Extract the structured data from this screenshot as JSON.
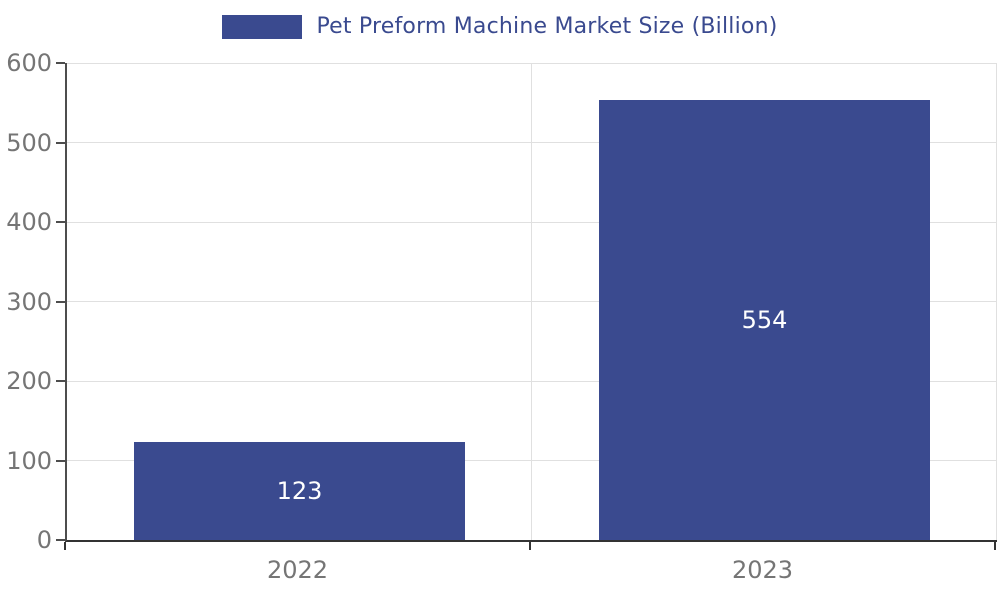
{
  "chart_data": {
    "type": "bar",
    "title": "Pet Preform Machine Market Size (Billion)",
    "categories": [
      "2022",
      "2023"
    ],
    "values": [
      123,
      554
    ],
    "xlabel": "",
    "ylabel": "",
    "ylim": [
      0,
      600
    ],
    "yticks": [
      0,
      100,
      200,
      300,
      400,
      500,
      600
    ],
    "grid": true,
    "legend_position": "top",
    "colors": {
      "bar": "#3a4a8f",
      "title_text": "#3a4a8f",
      "tick_label": "#757575",
      "value_label": "#ffffff",
      "gridline": "#e0e0e0",
      "axis": "#333333",
      "background": "#ffffff"
    }
  }
}
